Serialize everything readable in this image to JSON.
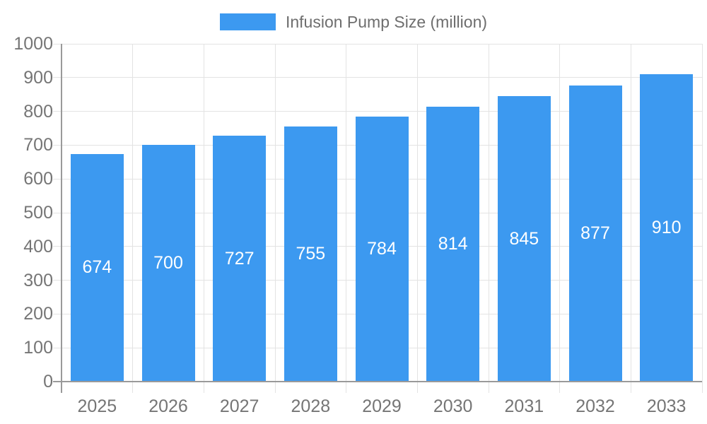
{
  "chart_data": {
    "type": "bar",
    "categories": [
      "2025",
      "2026",
      "2027",
      "2028",
      "2029",
      "2030",
      "2031",
      "2032",
      "2033"
    ],
    "values": [
      674,
      700,
      727,
      755,
      784,
      814,
      845,
      877,
      910
    ],
    "series": [
      {
        "name": "Infusion Pump Size (million)",
        "values": [
          674,
          700,
          727,
          755,
          784,
          814,
          845,
          877,
          910
        ]
      }
    ],
    "legend_label": "Infusion Pump Size (million)",
    "legend_position": "top",
    "title": "",
    "xlabel": "",
    "ylabel": "",
    "ylim": [
      0,
      1000
    ],
    "yticks": [
      "0",
      "100",
      "200",
      "300",
      "400",
      "500",
      "600",
      "700",
      "800",
      "900",
      "1000"
    ],
    "grid": true,
    "bar_labels_inside": true,
    "colors": {
      "bar": "#3C99F0",
      "bar_value_text": "#ffffff",
      "axis_text": "#757575",
      "legend_text": "#6e6e6e",
      "axis_line": "#9a9a9a",
      "grid_line": "#e3e3e3",
      "background": "#ffffff"
    }
  }
}
